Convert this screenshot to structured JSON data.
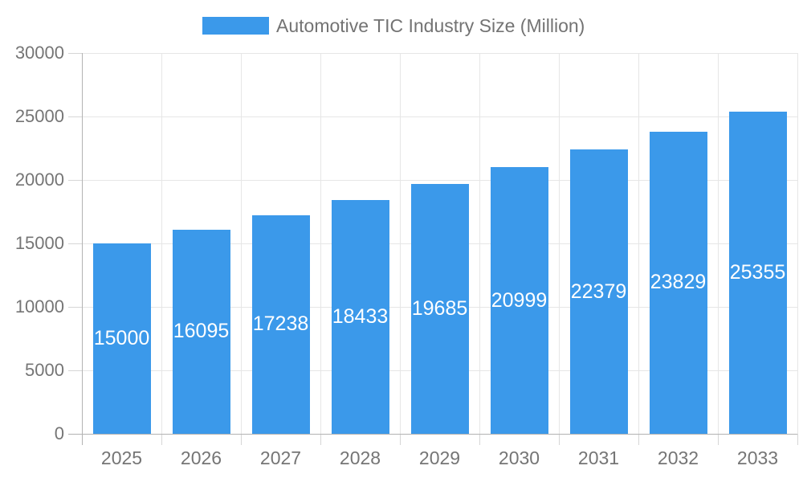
{
  "page": {
    "background_color": "#ffffff"
  },
  "legend": {
    "label": "Automotive TIC Industry Size (Million)",
    "swatch_color": "#3b99ea",
    "position": "top"
  },
  "chart_data": {
    "type": "bar",
    "title": "Automotive TIC Industry Size (Million)",
    "categories": [
      "2025",
      "2026",
      "2027",
      "2028",
      "2029",
      "2030",
      "2031",
      "2032",
      "2033"
    ],
    "series": [
      {
        "name": "Automotive TIC Industry Size (Million)",
        "values": [
          15000,
          16095,
          17238,
          18433,
          19685,
          20999,
          22379,
          23829,
          25355
        ]
      }
    ],
    "value_labels": [
      "15000",
      "16095",
      "17238",
      "18433",
      "19685",
      "20999",
      "22379",
      "23829",
      "25355"
    ],
    "xlabel": "",
    "ylabel": "",
    "ylim": [
      0,
      30000
    ],
    "ytick_step": 5000,
    "ytick_labels": [
      "0",
      "5000",
      "10000",
      "15000",
      "20000",
      "25000",
      "30000"
    ],
    "grid": true,
    "legend_position": "top",
    "colors": {
      "bar": "#3b99ea",
      "value_label": "#ffffff",
      "axis_label": "#757575",
      "gridline": "#e6e6e6",
      "axis_line": "#b3b3b3",
      "minor_tick": "#d6d6d6"
    }
  }
}
